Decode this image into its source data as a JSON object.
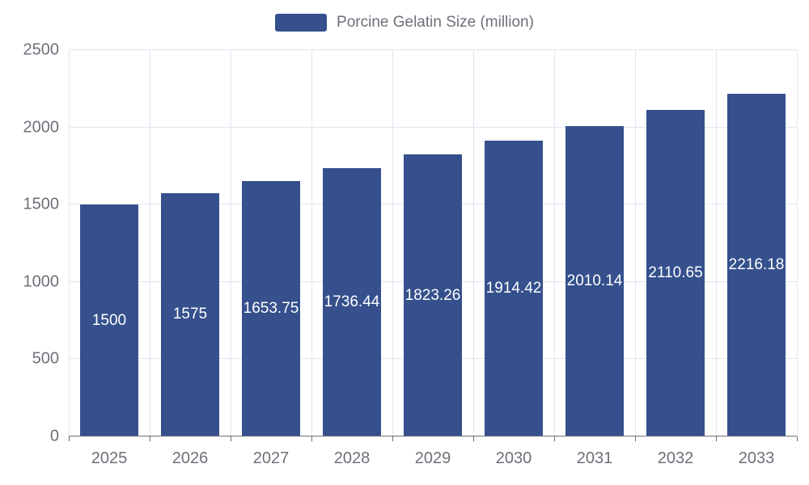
{
  "legend": {
    "label": "Porcine Gelatin Size (million)"
  },
  "chart_data": {
    "type": "bar",
    "title": "Porcine Gelatin Size (million)",
    "categories": [
      "2025",
      "2026",
      "2027",
      "2028",
      "2029",
      "2030",
      "2031",
      "2032",
      "2033"
    ],
    "values": [
      1500,
      1575,
      1653.75,
      1736.44,
      1823.26,
      1914.42,
      2010.14,
      2110.65,
      2216.18
    ],
    "value_labels": [
      "1500",
      "1575",
      "1653.75",
      "1736.44",
      "1823.26",
      "1914.42",
      "2010.14",
      "2110.65",
      "2216.18"
    ],
    "xlabel": "",
    "ylabel": "",
    "ylim": [
      0,
      2500
    ],
    "yticks": [
      0,
      500,
      1000,
      1500,
      2000,
      2500
    ],
    "ytick_labels": [
      "0",
      "500",
      "1000",
      "1500",
      "2000",
      "2500"
    ],
    "grid": true,
    "legend_position": "top",
    "bar_width_fraction": 0.72,
    "colors": {
      "bar": "#35508C",
      "bar_label": "#ffffff",
      "axis_text": "#6E7079",
      "axis_line": "#6E7079",
      "gridline": "#E0E6F1",
      "background": "#ffffff"
    }
  }
}
